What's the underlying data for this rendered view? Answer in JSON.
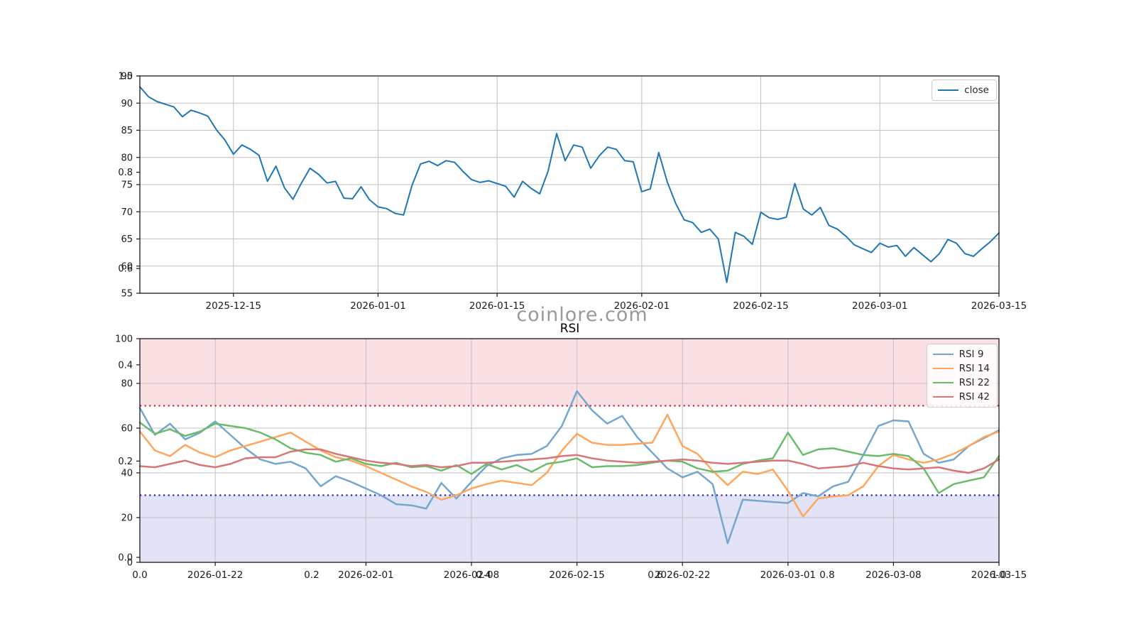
{
  "watermark": {
    "text": "coinlore.com"
  },
  "rsi_title": "RSI",
  "colors": {
    "close": "#1f77b4",
    "rsi9": "#74a7cf",
    "rsi14": "#ffa65c",
    "rsi22": "#6abc6c",
    "rsi42": "#d87575",
    "grid": "#c0c0c0",
    "spine": "#1a1a1a",
    "tick_label": "#1a1a1a",
    "overbought_band": "#fbe0e3",
    "oversold_band": "#e3e3f7",
    "overbought_line": "#cf2233",
    "oversold_line": "#2222cc",
    "watermark_color": "#999999"
  },
  "chart_data": [
    {
      "type": "line",
      "name": "price",
      "title": "",
      "ylabel": "",
      "ylim": [
        55,
        95
      ],
      "grid": true,
      "legend_position": "upper right",
      "y_ticks": [
        55,
        60,
        65,
        70,
        75,
        80,
        85,
        90,
        95
      ],
      "x_ticks": [
        {
          "label": "2025-12-15",
          "day": 11
        },
        {
          "label": "2026-01-01",
          "day": 28
        },
        {
          "label": "2026-01-15",
          "day": 42
        },
        {
          "label": "2026-02-01",
          "day": 59
        },
        {
          "label": "2026-02-15",
          "day": 73
        },
        {
          "label": "2026-03-01",
          "day": 87
        },
        {
          "label": "2026-03-15",
          "day": 101
        }
      ],
      "legend": [
        {
          "label": "close",
          "color_key": "close"
        }
      ],
      "series": [
        {
          "name": "close",
          "color_key": "close",
          "width": 2,
          "values": [
            93.0,
            91.2,
            90.3,
            89.8,
            89.3,
            87.5,
            88.7,
            88.2,
            87.6,
            85.1,
            83.2,
            80.6,
            82.3,
            81.5,
            80.4,
            75.6,
            78.4,
            74.4,
            72.3,
            75.3,
            78.0,
            76.9,
            75.3,
            75.6,
            72.5,
            72.4,
            74.6,
            72.2,
            70.9,
            70.6,
            69.7,
            69.4,
            74.9,
            78.8,
            79.3,
            78.5,
            79.4,
            79.1,
            77.4,
            75.9,
            75.4,
            75.7,
            75.2,
            74.7,
            72.7,
            75.6,
            74.3,
            73.3,
            77.5,
            84.4,
            79.4,
            82.3,
            81.9,
            78.0,
            80.3,
            81.9,
            81.5,
            79.4,
            79.2,
            73.7,
            74.2,
            80.9,
            75.5,
            71.5,
            68.5,
            68.0,
            66.2,
            66.8,
            65.0,
            57.0,
            66.2,
            65.5,
            64.0,
            69.9,
            68.9,
            68.6,
            69.0,
            75.2,
            70.5,
            69.4,
            70.8,
            67.5,
            66.8,
            65.5,
            63.9,
            63.2,
            62.5,
            64.2,
            63.5,
            63.8,
            61.8,
            63.4,
            62.1,
            60.8,
            62.3,
            64.9,
            64.2,
            62.3,
            61.8,
            63.2,
            64.5,
            66.1
          ]
        }
      ]
    },
    {
      "type": "line",
      "name": "rsi",
      "title": "RSI",
      "ylim": [
        0,
        100
      ],
      "grid": true,
      "overbought_level": 70,
      "oversold_level": 30,
      "legend_position": "upper right",
      "y_ticks": [
        0,
        20,
        40,
        60,
        80,
        100
      ],
      "x_ticks": [
        {
          "label": "2026-01-22",
          "day": 5
        },
        {
          "label": "2026-02-01",
          "day": 15
        },
        {
          "label": "2026-02-08",
          "day": 22
        },
        {
          "label": "2026-02-15",
          "day": 29
        },
        {
          "label": "2026-02-22",
          "day": 36
        },
        {
          "label": "2026-03-01",
          "day": 43
        },
        {
          "label": "2026-03-08",
          "day": 50
        },
        {
          "label": "2026-03-15",
          "day": 57
        }
      ],
      "legend": [
        {
          "label": "RSI 9",
          "color_key": "rsi9"
        },
        {
          "label": "RSI 14",
          "color_key": "rsi14"
        },
        {
          "label": "RSI 22",
          "color_key": "rsi22"
        },
        {
          "label": "RSI 42",
          "color_key": "rsi42"
        }
      ],
      "series": [
        {
          "name": "RSI 9",
          "color_key": "rsi9",
          "width": 2.5,
          "values": [
            69,
            57,
            62,
            55,
            58,
            63,
            57,
            51,
            46,
            44,
            45,
            42,
            34,
            38.5,
            36,
            33,
            30,
            26,
            25.5,
            24,
            35.5,
            28.5,
            36,
            43,
            46.5,
            48,
            48.5,
            52,
            61,
            76.5,
            68,
            62,
            65.5,
            56,
            49,
            42,
            38,
            40.5,
            35,
            8.5,
            28,
            27.5,
            27,
            26.5,
            31,
            29.5,
            34,
            36,
            48,
            61,
            63.5,
            63,
            48.5,
            44.5,
            46,
            52,
            55.5,
            59
          ]
        },
        {
          "name": "RSI 14",
          "color_key": "rsi14",
          "width": 2.5,
          "values": [
            58.5,
            50,
            47.5,
            52.5,
            49,
            47,
            50,
            52,
            54,
            56,
            58,
            54,
            50,
            47,
            45.5,
            43,
            40,
            37,
            34,
            31.5,
            28,
            30,
            33,
            35,
            36.5,
            35.5,
            34.5,
            40,
            50,
            57.5,
            53.5,
            52.5,
            52.5,
            53,
            53.5,
            66,
            52,
            48.5,
            41,
            34.5,
            40.5,
            39.5,
            41.5,
            32,
            20.5,
            28.5,
            29.5,
            30,
            34,
            43,
            48,
            46,
            44.5,
            46,
            48.5,
            52,
            56,
            58.5
          ]
        },
        {
          "name": "RSI 22",
          "color_key": "rsi22",
          "width": 2.5,
          "values": [
            62.5,
            57.5,
            59.5,
            56.5,
            58.5,
            62,
            61,
            60,
            58,
            55,
            51,
            49,
            48,
            45,
            46.5,
            44,
            43,
            44.5,
            42.5,
            43,
            41,
            43.5,
            39.5,
            44,
            41.5,
            43.5,
            40.5,
            44,
            45,
            46.5,
            42.5,
            43,
            43,
            43.5,
            44.5,
            45.5,
            45,
            42,
            40.5,
            41,
            44,
            45.5,
            46.5,
            58,
            48,
            50.5,
            51,
            49.5,
            48,
            47.5,
            48.5,
            47.5,
            42,
            31,
            35,
            36.5,
            38,
            47.5
          ]
        },
        {
          "name": "RSI 42",
          "color_key": "rsi42",
          "width": 2.5,
          "values": [
            43,
            42.5,
            44,
            45.5,
            43.5,
            42.5,
            44,
            46.5,
            47,
            47,
            49.5,
            50.5,
            50.5,
            48.5,
            47,
            45.5,
            44.5,
            44,
            43,
            43.5,
            42.5,
            43,
            44.5,
            44.5,
            45,
            45.5,
            46,
            46.5,
            47.5,
            48,
            46.5,
            45.5,
            45,
            44.5,
            45,
            45.5,
            46,
            45.5,
            44.5,
            44,
            44.5,
            45,
            45.5,
            45.5,
            44,
            42,
            42.5,
            43,
            44.5,
            43,
            42,
            41.5,
            42,
            42.5,
            41,
            40,
            42,
            46
          ]
        }
      ]
    }
  ],
  "overlay_axis": {
    "x_tick_labels": [
      "0.0",
      "0.2",
      "0.4",
      "0.6",
      "0.8",
      "1.0"
    ],
    "y_tick_labels": [
      "0.0",
      "0.2",
      "0.4",
      "0.6",
      "0.8",
      "1.0"
    ]
  }
}
